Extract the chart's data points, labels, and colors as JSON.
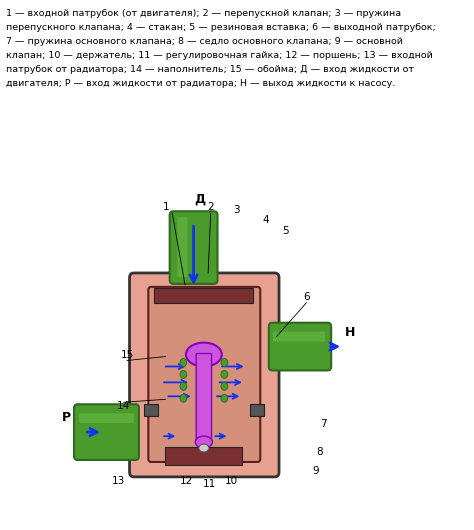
{
  "bg_color": "#ffffff",
  "text_color": "#000000",
  "diagram_bg": "#e8a090",
  "diagram_inner": "#d4907a",
  "green_color": "#4a9a2c",
  "green_light": "#6abf4a",
  "green_dark": "#2d6a1e",
  "purple_color": "#cc55dd",
  "purple_dark": "#8800bb",
  "blue_arrow": "#1133ee",
  "dark_outline": "#333333",
  "brown_dark": "#7a3030",
  "lines": [
    "1 — входной патрубок (от двигателя); 2 — перепускной клапан; 3 — пружина",
    "перепускного клапана; 4 — стакан; 5 — резиновая вставка; 6 — выходной патрубок;",
    "7 — пружина основного клапана; 8 — седло основного клапана; 9 — основной",
    "клапан; 10 — держатель; 11 — регулировочная гайка; 12 — поршень; 13 — входной",
    "патрубок от радиатора; 14 — наполнитель; 15 — обойма; Д — вход жидкости от",
    "двигателя; Р — вход жидкости от радиатора; Н — выход жидкости к насосу."
  ]
}
